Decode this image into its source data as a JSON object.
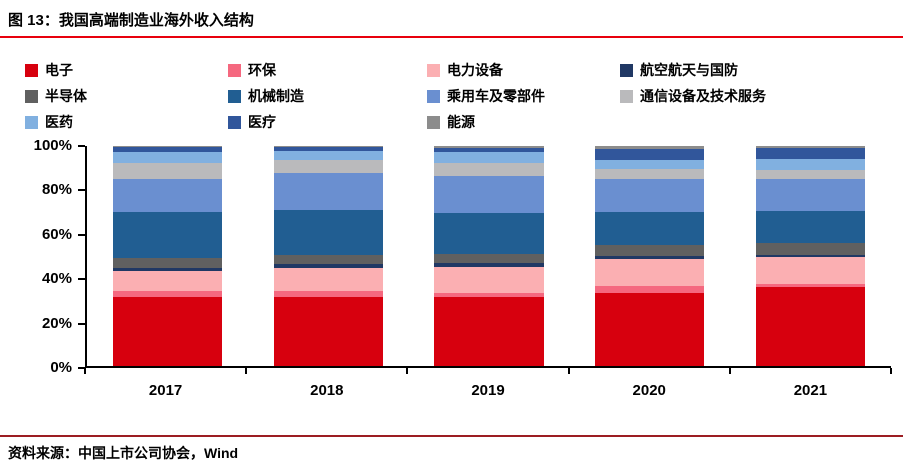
{
  "header": {
    "title": "图 13：我国高端制造业海外收入结构"
  },
  "footer": {
    "source": "资料来源：中国上市公司协会，Wind"
  },
  "theme": {
    "title_rule_color": "#E8000D",
    "footer_rule_color": "#9C1D22",
    "axis_color": "#000000",
    "background": "#FFFFFF"
  },
  "chart_data": {
    "type": "bar",
    "variant": "stacked-100-percent",
    "title": "我国高端制造业海外收入结构",
    "categories": [
      "2017",
      "2018",
      "2019",
      "2020",
      "2021"
    ],
    "series": [
      {
        "name": "电子",
        "color": "#D7000E",
        "values": [
          31.5,
          31.3,
          31.5,
          33.4,
          35.8
        ]
      },
      {
        "name": "环保",
        "color": "#F5687F",
        "values": [
          2.7,
          2.7,
          1.5,
          2.9,
          1.3
        ]
      },
      {
        "name": "电力设备",
        "color": "#FBAFB2",
        "values": [
          8.9,
          10.7,
          12.0,
          12.4,
          12.5
        ]
      },
      {
        "name": "航空航天与国防",
        "color": "#203864",
        "values": [
          1.3,
          1.5,
          1.7,
          1.5,
          0.9
        ]
      },
      {
        "name": "半导体",
        "color": "#606060",
        "values": [
          4.6,
          4.2,
          4.0,
          4.8,
          5.4
        ]
      },
      {
        "name": "机械制造",
        "color": "#215E92",
        "values": [
          21.0,
          20.5,
          18.8,
          14.9,
          14.8
        ]
      },
      {
        "name": "乘用车及零部件",
        "color": "#6A8FD0",
        "values": [
          14.8,
          16.7,
          17.0,
          15.2,
          14.2
        ]
      },
      {
        "name": "通信设备及技术服务",
        "color": "#BABABC",
        "values": [
          7.3,
          6.0,
          5.9,
          4.4,
          4.1
        ]
      },
      {
        "name": "医药",
        "color": "#81B0E0",
        "values": [
          5.0,
          4.0,
          4.8,
          4.4,
          5.1
        ]
      },
      {
        "name": "医疗",
        "color": "#31569B",
        "values": [
          2.4,
          1.9,
          2.0,
          4.9,
          5.1
        ]
      },
      {
        "name": "能源",
        "color": "#8C8C8C",
        "values": [
          0.5,
          0.5,
          0.8,
          1.2,
          0.8
        ]
      }
    ],
    "yticks": [
      "0%",
      "20%",
      "40%",
      "60%",
      "80%",
      "100%"
    ],
    "ylim": [
      0,
      100
    ],
    "grid": false,
    "legend_position": "top",
    "legend_columns": 4
  }
}
